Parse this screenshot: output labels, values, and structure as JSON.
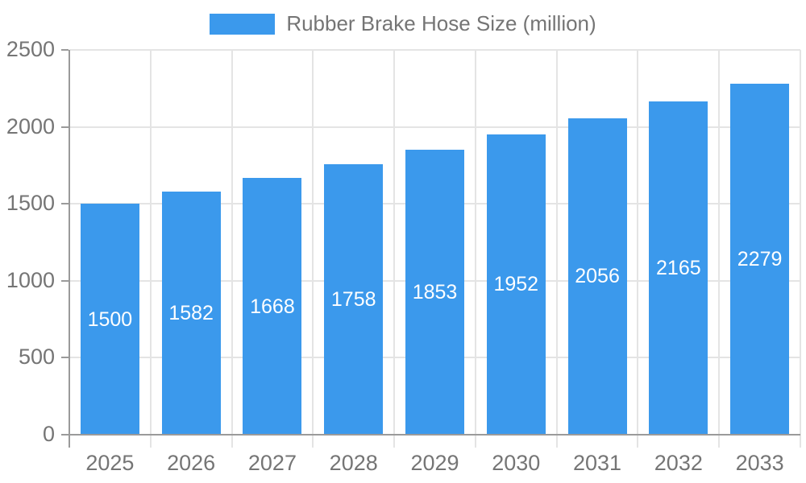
{
  "legend": {
    "label": "Rubber Brake Hose Size (million)"
  },
  "chart_data": {
    "type": "bar",
    "title": "Rubber Brake Hose Size (million)",
    "series": [
      {
        "name": "Rubber Brake Hose Size (million)",
        "values": [
          1500,
          1582,
          1668,
          1758,
          1853,
          1952,
          2056,
          2165,
          2279
        ]
      }
    ],
    "categories": [
      "2025",
      "2026",
      "2027",
      "2028",
      "2029",
      "2030",
      "2031",
      "2032",
      "2033"
    ],
    "xlabel": "",
    "ylabel": "",
    "ylim": [
      0,
      2500
    ],
    "yticks": [
      0,
      500,
      1000,
      1500,
      2000,
      2500
    ],
    "grid": true,
    "legend_position": "top-center",
    "value_labels": "inside-center",
    "colors": {
      "bar": "#3B99EC",
      "axis": "#9A9A9A",
      "grid": "#E4E4E4",
      "tick_text": "#757575",
      "value_text": "#FFFFFF",
      "background": "#FFFFFF"
    }
  }
}
